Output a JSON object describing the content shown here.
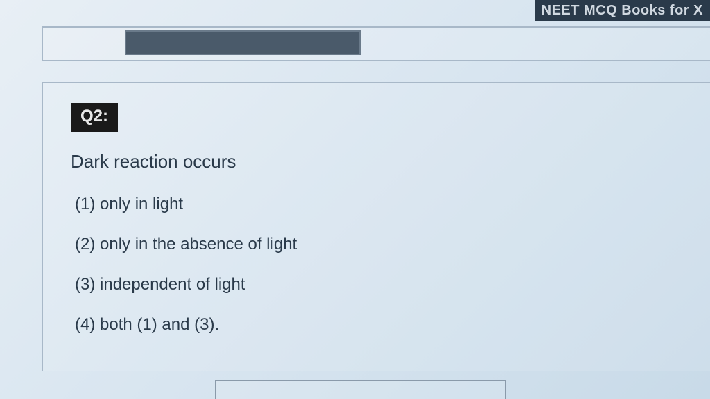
{
  "header": {
    "title": "NEET MCQ Books for X"
  },
  "question": {
    "label": "Q2:",
    "text": "Dark reaction occurs",
    "options": [
      {
        "number": "(1)",
        "text": "only in light"
      },
      {
        "number": "(2)",
        "text": "only in the absence of light"
      },
      {
        "number": "(3)",
        "text": "independent of light"
      },
      {
        "number": "(4)",
        "text": "both (1) and (3)."
      }
    ]
  },
  "colors": {
    "header_bg": "#2a3a4a",
    "header_text": "#d0d8e0",
    "label_bg": "#1a1a1a",
    "label_text": "#e8e8e8",
    "body_text": "#2a3a4a",
    "border": "#a8b8c8",
    "page_bg_start": "#e8eff5",
    "page_bg_end": "#c8dae8"
  },
  "typography": {
    "header_fontsize": 20,
    "label_fontsize": 24,
    "question_fontsize": 26,
    "option_fontsize": 24
  }
}
